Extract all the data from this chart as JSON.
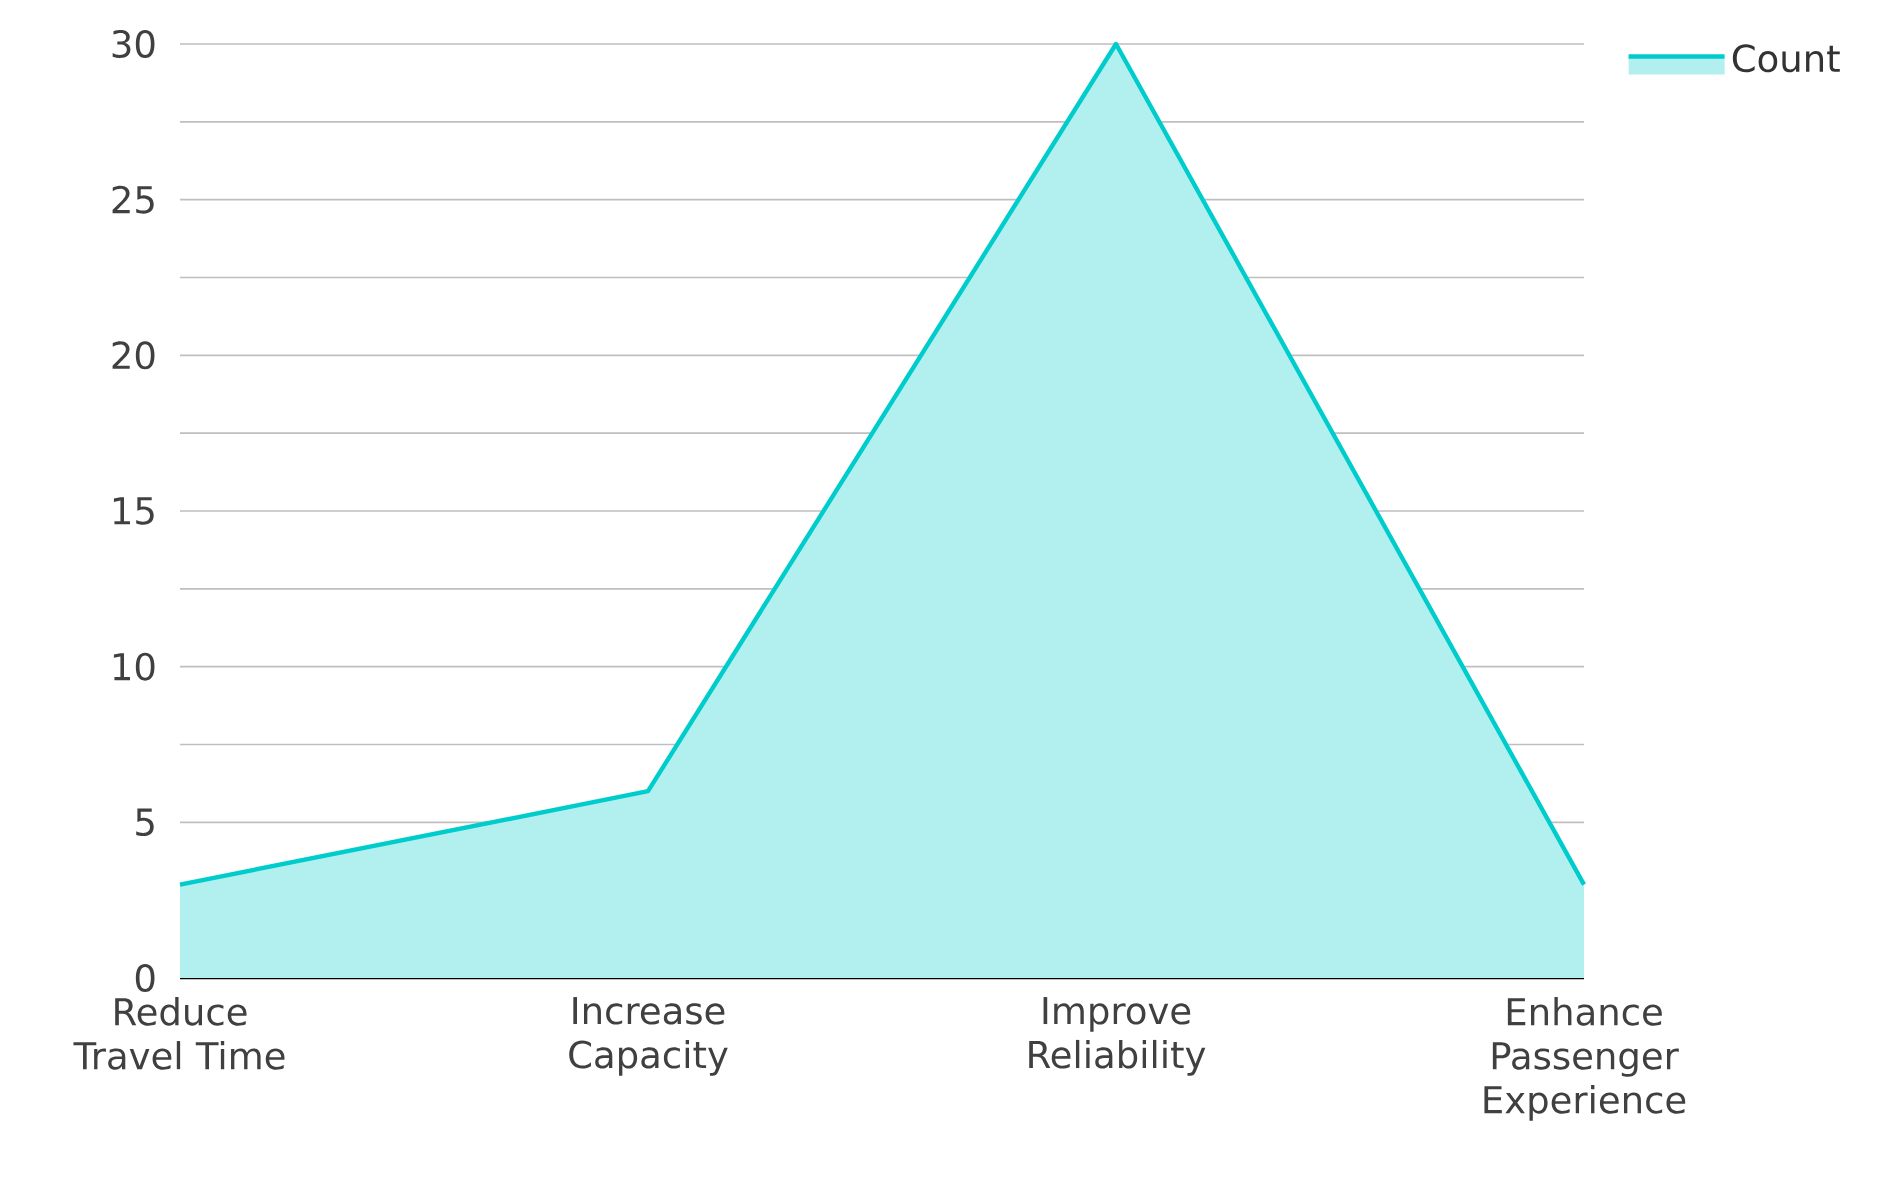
{
  "chart_data": {
    "type": "area",
    "categories": [
      "Reduce Travel Time",
      "Increase Capacity",
      "Improve Reliability",
      "Enhance Passenger Experience"
    ],
    "series": [
      {
        "name": "Count",
        "color": "#00cccc",
        "values": [
          3,
          6,
          30,
          3
        ]
      }
    ],
    "ylim": [
      0,
      30
    ],
    "yticks": [
      0,
      {
        "value": 2.5,
        "label": null
      },
      5,
      {
        "value": 7.5,
        "label": null
      },
      10,
      {
        "value": 12.5,
        "label": null
      },
      15,
      {
        "value": 17.5,
        "label": null
      },
      20,
      {
        "value": 22.5,
        "label": null
      },
      25,
      {
        "value": 27.5,
        "label": null
      },
      30
    ],
    "grid": "y",
    "legend": "top right",
    "marker": "none",
    "line_style": "solid"
  }
}
